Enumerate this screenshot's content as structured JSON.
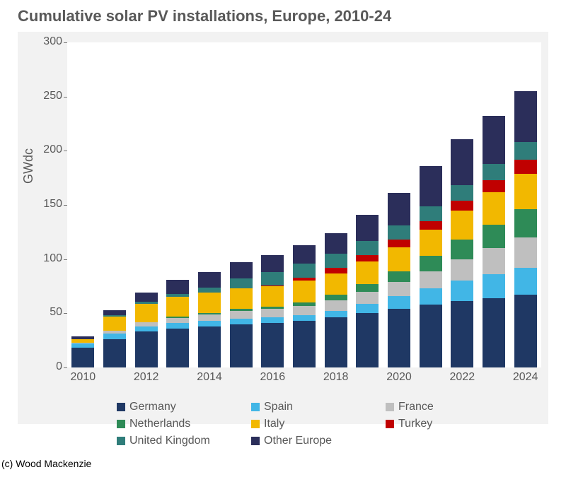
{
  "chart": {
    "type": "stacked-bar",
    "title": "Cumulative solar PV installations, Europe, 2010-24",
    "ylabel": "GWdc",
    "ylim": [
      0,
      300
    ],
    "ytick_step": 50,
    "title_fontsize": 22,
    "title_color": "#595959",
    "tick_fontsize": 16,
    "tick_color": "#595959",
    "background_color": "#f2f2f2",
    "plot_background": "#ffffff",
    "bar_width": 0.72,
    "xtick_labels_shown": [
      "2010",
      "2012",
      "2014",
      "2016",
      "2018",
      "2020",
      "2022",
      "2024"
    ],
    "years": [
      "2010",
      "2011",
      "2012",
      "2013",
      "2014",
      "2015",
      "2016",
      "2017",
      "2018",
      "2019",
      "2020",
      "2021",
      "2022",
      "2023",
      "2024"
    ],
    "series": [
      {
        "name": "Germany",
        "color": "#1f3864"
      },
      {
        "name": "Spain",
        "color": "#41b6e6"
      },
      {
        "name": "France",
        "color": "#bfbfbf"
      },
      {
        "name": "Netherlands",
        "color": "#2e8b57"
      },
      {
        "name": "Italy",
        "color": "#f2b800"
      },
      {
        "name": "Turkey",
        "color": "#c00000"
      },
      {
        "name": "United Kingdom",
        "color": "#2f7d7a"
      },
      {
        "name": "Other Europe",
        "color": "#2b2e5a"
      }
    ],
    "data": {
      "Germany": [
        18,
        26,
        33,
        36,
        38,
        40,
        41,
        43,
        46,
        50,
        54,
        58,
        61,
        64,
        67
      ],
      "Spain": [
        4,
        5,
        5,
        5,
        5,
        5,
        5,
        5,
        6,
        9,
        12,
        15,
        19,
        22,
        25
      ],
      "France": [
        1,
        3,
        4,
        5,
        6,
        7,
        8,
        9,
        10,
        11,
        13,
        16,
        20,
        24,
        28
      ],
      "Netherlands": [
        0,
        0,
        0,
        1,
        1,
        2,
        2,
        3,
        5,
        7,
        10,
        14,
        18,
        22,
        26
      ],
      "Italy": [
        3,
        13,
        17,
        18,
        19,
        19,
        19,
        20,
        20,
        21,
        22,
        24,
        27,
        30,
        33
      ],
      "Turkey": [
        0,
        0,
        0,
        0,
        0,
        0,
        1,
        3,
        5,
        6,
        7,
        8,
        9,
        11,
        13
      ],
      "United Kingdom": [
        0,
        1,
        2,
        3,
        5,
        9,
        12,
        13,
        13,
        13,
        13,
        14,
        14,
        15,
        16
      ],
      "Other Europe": [
        3,
        5,
        8,
        13,
        14,
        15,
        16,
        17,
        19,
        24,
        30,
        37,
        43,
        44,
        47
      ]
    }
  },
  "credit": "(c) Wood Mackenzie"
}
